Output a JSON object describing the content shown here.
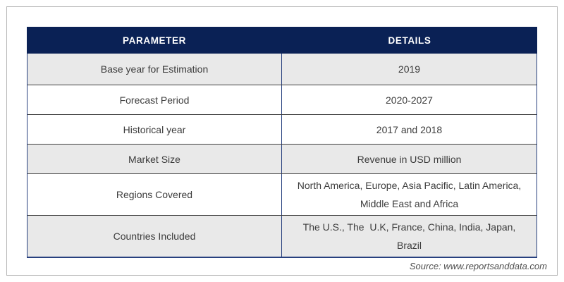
{
  "chart_data": {
    "type": "table",
    "columns": [
      "PARAMETER",
      "DETAILS"
    ],
    "rows": [
      [
        "Base year for Estimation",
        "2019"
      ],
      [
        "Forecast Period",
        "2020-2027"
      ],
      [
        "Historical year",
        "2017 and 2018"
      ],
      [
        "Market Size",
        "Revenue in USD million"
      ],
      [
        "Regions Covered",
        "North America, Europe, Asia Pacific, Latin America, Middle East and Africa"
      ],
      [
        "Countries Included",
        "The U.S., The  U.K, France, China, India, Japan, Brazil"
      ]
    ],
    "shaded_row_indexes": [
      0,
      3,
      5
    ],
    "source": "Source: www.reportsanddata.com"
  },
  "colors": {
    "header-bg": "#0a2155",
    "header-text": "#ffffff",
    "table-border": "#27407e",
    "row-divider": "#3f3f3f",
    "shaded-row-bg": "#e9e9e9",
    "cell-text": "#3c3c3c",
    "source-text": "#4f4f4f",
    "frame-border": "#b5b5b5"
  }
}
